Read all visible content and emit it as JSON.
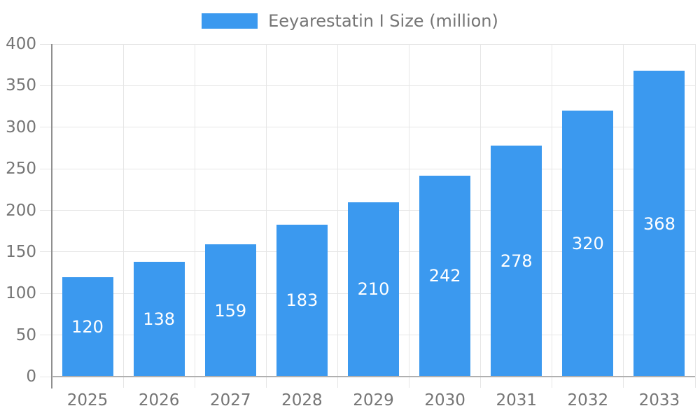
{
  "chart_data": {
    "type": "bar",
    "title": "Eeyarestatin I Size (million)",
    "categories": [
      "2025",
      "2026",
      "2027",
      "2028",
      "2029",
      "2030",
      "2031",
      "2032",
      "2033"
    ],
    "values": [
      120,
      138,
      159,
      183,
      210,
      242,
      278,
      320,
      368
    ],
    "series": [
      {
        "name": "Eeyarestatin I Size (million)",
        "values": [
          120,
          138,
          159,
          183,
          210,
          242,
          278,
          320,
          368
        ]
      }
    ],
    "xlabel": "",
    "ylabel": "",
    "ylim": [
      0,
      400
    ],
    "ytick_step": 50,
    "ytick_labels": [
      "0",
      "50",
      "100",
      "150",
      "200",
      "250",
      "300",
      "350",
      "400"
    ],
    "grid": true,
    "legend_position": "top",
    "bar_labels_inside": true,
    "colors": {
      "bar": "#3B99EF",
      "bar_value_text": "#ffffff",
      "axis_text": "#757575",
      "legend_text": "#757575",
      "gridline": "#e6e6e6",
      "y_axis_line": "#8f8f8f",
      "x_baseline": "#b0b0b0",
      "background": "#ffffff"
    }
  },
  "legend": {
    "label": "Eeyarestatin I Size (million)"
  }
}
